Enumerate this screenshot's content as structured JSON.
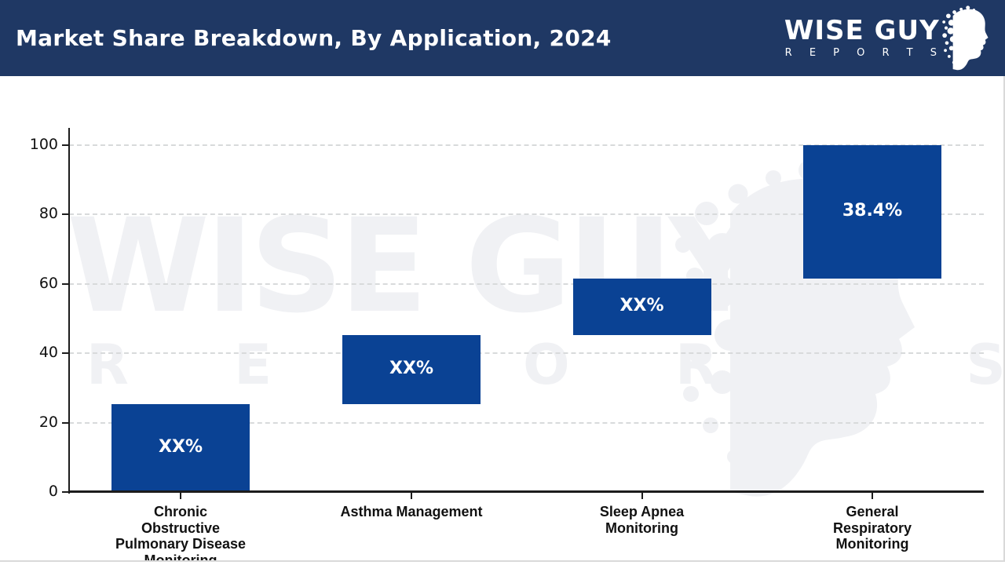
{
  "header": {
    "title": "Market Share Breakdown, By Application, 2024",
    "logo": {
      "line1": "WISE GUY",
      "line2": "R E P O R T S"
    }
  },
  "watermark": {
    "line1": "WISE GUY",
    "line2": "R E P O R T S"
  },
  "chart_data": {
    "type": "bar",
    "subtype": "waterfall",
    "title": "Market Share Breakdown, By Application, 2024",
    "xlabel": "",
    "ylabel": "",
    "ylim": [
      0,
      100
    ],
    "y_ticks": [
      0,
      20,
      40,
      60,
      80,
      100
    ],
    "grid": "horizontal-dashed",
    "legend": "none",
    "categories": [
      "Chronic\nObstructive\nPulmonary Disease\nMonitoring",
      "Asthma Management",
      "Sleep Apnea\nMonitoring",
      "General\nRespiratory\nMonitoring"
    ],
    "values": [
      25.3,
      19.9,
      16.4,
      38.4
    ],
    "segments": [
      {
        "start": 0,
        "end": 25.3,
        "label": "XX%"
      },
      {
        "start": 25.3,
        "end": 45.2,
        "label": "XX%"
      },
      {
        "start": 45.2,
        "end": 61.6,
        "label": "XX%"
      },
      {
        "start": 61.6,
        "end": 100,
        "label": "38.4%"
      }
    ],
    "bar_color": "#0a4294",
    "bar_label_color": "#ffffff"
  },
  "colors": {
    "header_bg": "#1f3864",
    "bar": "#0a4294",
    "grid": "#d8dadb",
    "watermark": "#f0f1f4",
    "axis": "#1c1c1c"
  }
}
